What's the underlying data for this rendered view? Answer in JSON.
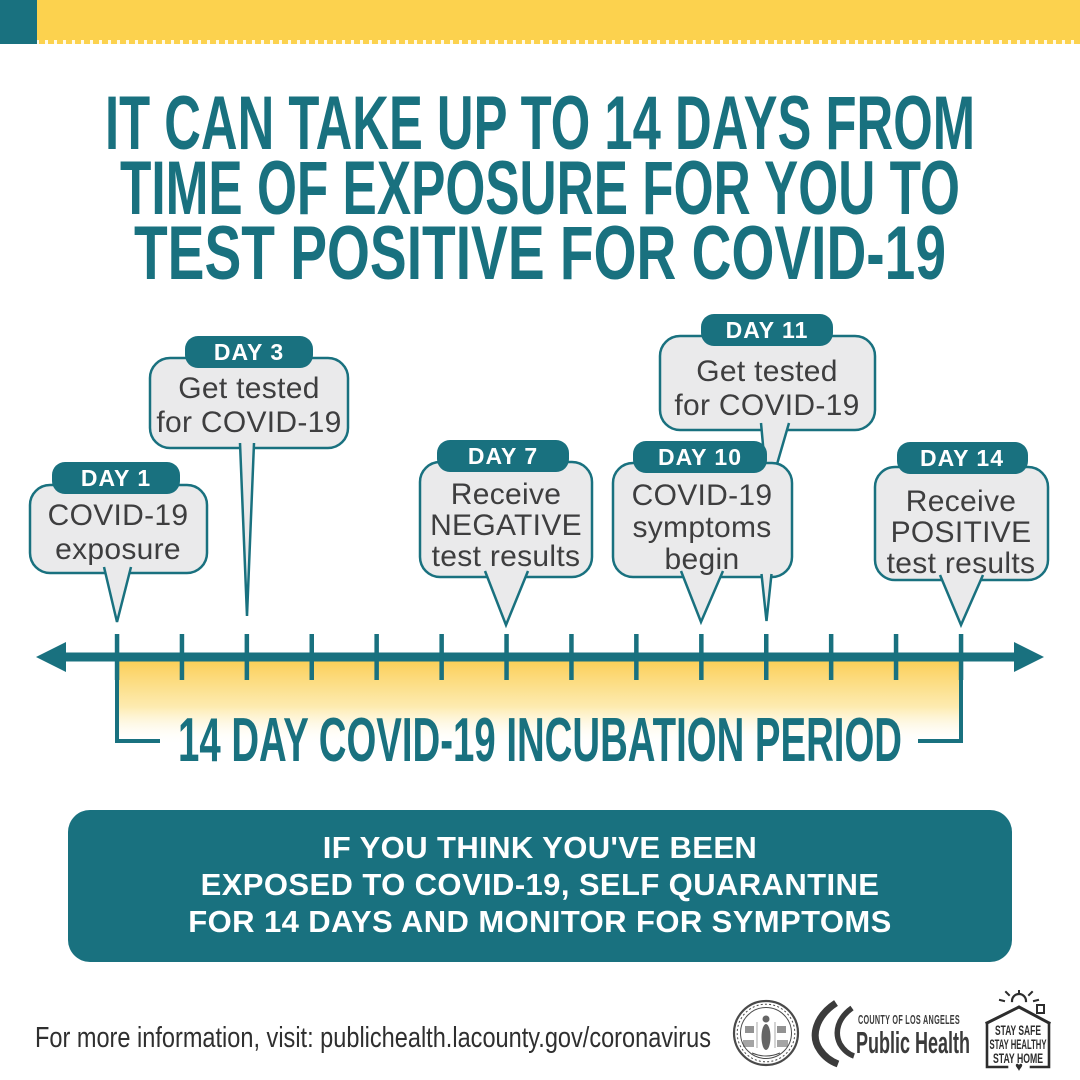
{
  "colors": {
    "teal": "#19717F",
    "yellow": "#FCD24E",
    "bubble_fill": "#EAEAEB",
    "body_text": "#3E3E3F"
  },
  "title": {
    "lines": [
      "IT CAN TAKE UP TO 14 DAYS FROM",
      "TIME OF EXPOSURE FOR YOU TO",
      "TEST POSITIVE FOR COVID-19"
    ]
  },
  "timeline": {
    "day_count": 14,
    "label": "14 DAY COVID-19 INCUBATION PERIOD",
    "events": [
      {
        "day": 1,
        "day_label": "DAY 1",
        "lines": [
          "COVID-19",
          "exposure"
        ]
      },
      {
        "day": 3,
        "day_label": "DAY 3",
        "lines": [
          "Get tested",
          "for COVID-19"
        ]
      },
      {
        "day": 7,
        "day_label": "DAY 7",
        "lines": [
          "Receive",
          "NEGATIVE",
          "test results"
        ]
      },
      {
        "day": 10,
        "day_label": "DAY 10",
        "lines": [
          "COVID-19",
          "symptoms",
          "begin"
        ]
      },
      {
        "day": 11,
        "day_label": "DAY 11",
        "lines": [
          "Get tested",
          "for COVID-19"
        ]
      },
      {
        "day": 14,
        "day_label": "DAY 14",
        "lines": [
          "Receive",
          "POSITIVE",
          "test results"
        ]
      }
    ]
  },
  "banner": {
    "lines": [
      "IF YOU THINK YOU'VE BEEN",
      "EXPOSED TO COVID-19, SELF QUARANTINE",
      "FOR 14 DAYS AND MONITOR FOR SYMPTOMS"
    ]
  },
  "footer": {
    "info_text": "For more information, visit: publichealth.lacounty.gov/coronavirus",
    "public_health_logo": {
      "line1": "COUNTY OF LOS ANGELES",
      "line2": "Public Health"
    },
    "stay_badge": {
      "lines": [
        "STAY SAFE",
        "STAY HEALTHY",
        "STAY HOME"
      ]
    }
  }
}
